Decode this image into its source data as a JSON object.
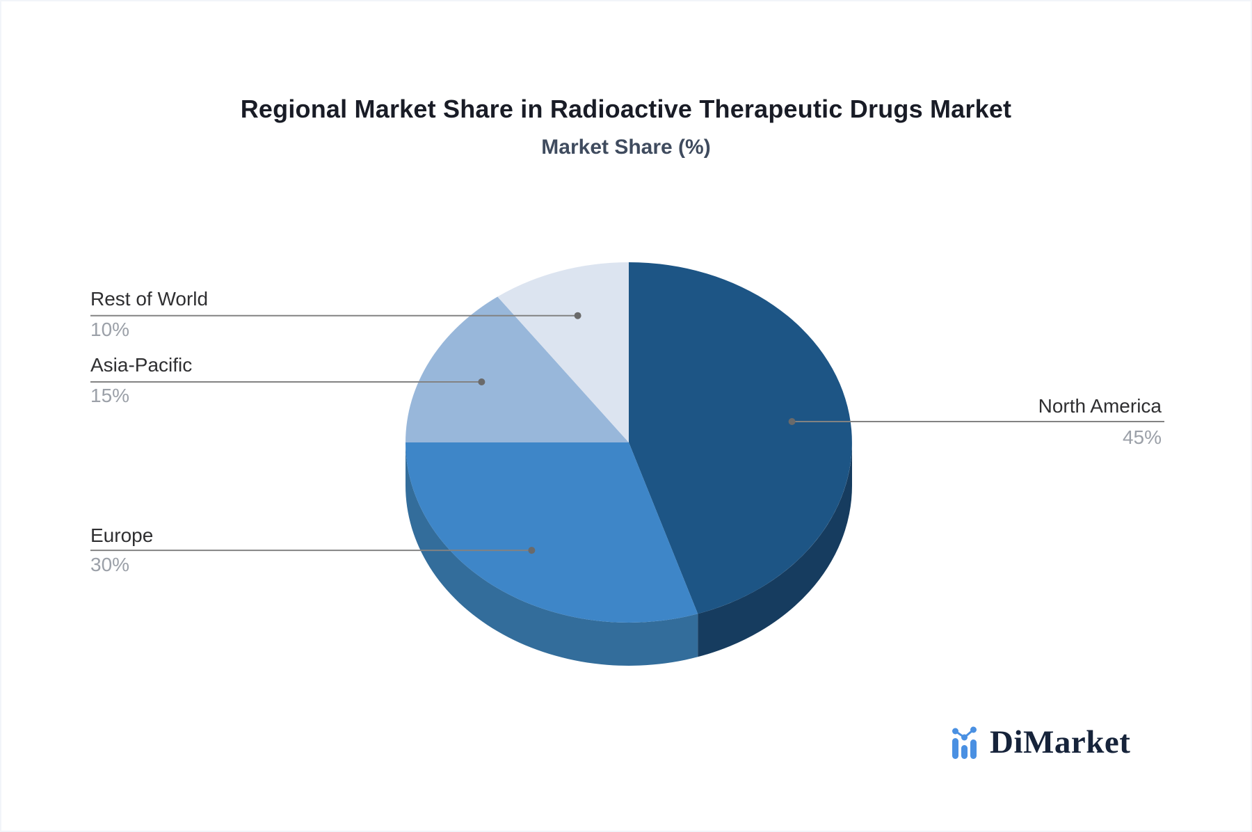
{
  "chart": {
    "title": "Regional Market Share in Radioactive Therapeutic Drugs Market",
    "subtitle": "Market Share (%)"
  },
  "branding": {
    "logo_text": "DiMarket",
    "logo_color": "#16233a",
    "logo_icon_blue": "#4a90e2"
  },
  "chart_data": {
    "type": "pie",
    "title": "Regional Market Share in Radioactive Therapeutic Drugs Market",
    "subtitle": "Market Share (%)",
    "unit": "%",
    "style": "3d-pie",
    "start_angle_deg": 0,
    "direction": "clockwise",
    "legend_position": "none",
    "leader_line_color": "#828282",
    "leader_dot_color": "#6a6a6a",
    "slices": [
      {
        "label": "North America",
        "value": 45,
        "pct_label": "45%",
        "color": "#1d5585",
        "side_color": "#163c5f",
        "label_side": "right"
      },
      {
        "label": "Europe",
        "value": 30,
        "pct_label": "30%",
        "color": "#3e86c8",
        "side_color": "#336d9b",
        "label_side": "left"
      },
      {
        "label": "Asia-Pacific",
        "value": 15,
        "pct_label": "15%",
        "color": "#98b7da",
        "side_color": "#7693b2",
        "label_side": "left"
      },
      {
        "label": "Rest of World",
        "value": 10,
        "pct_label": "10%",
        "color": "#dce4f0",
        "side_color": "#b3bdcd",
        "label_side": "left"
      }
    ]
  }
}
